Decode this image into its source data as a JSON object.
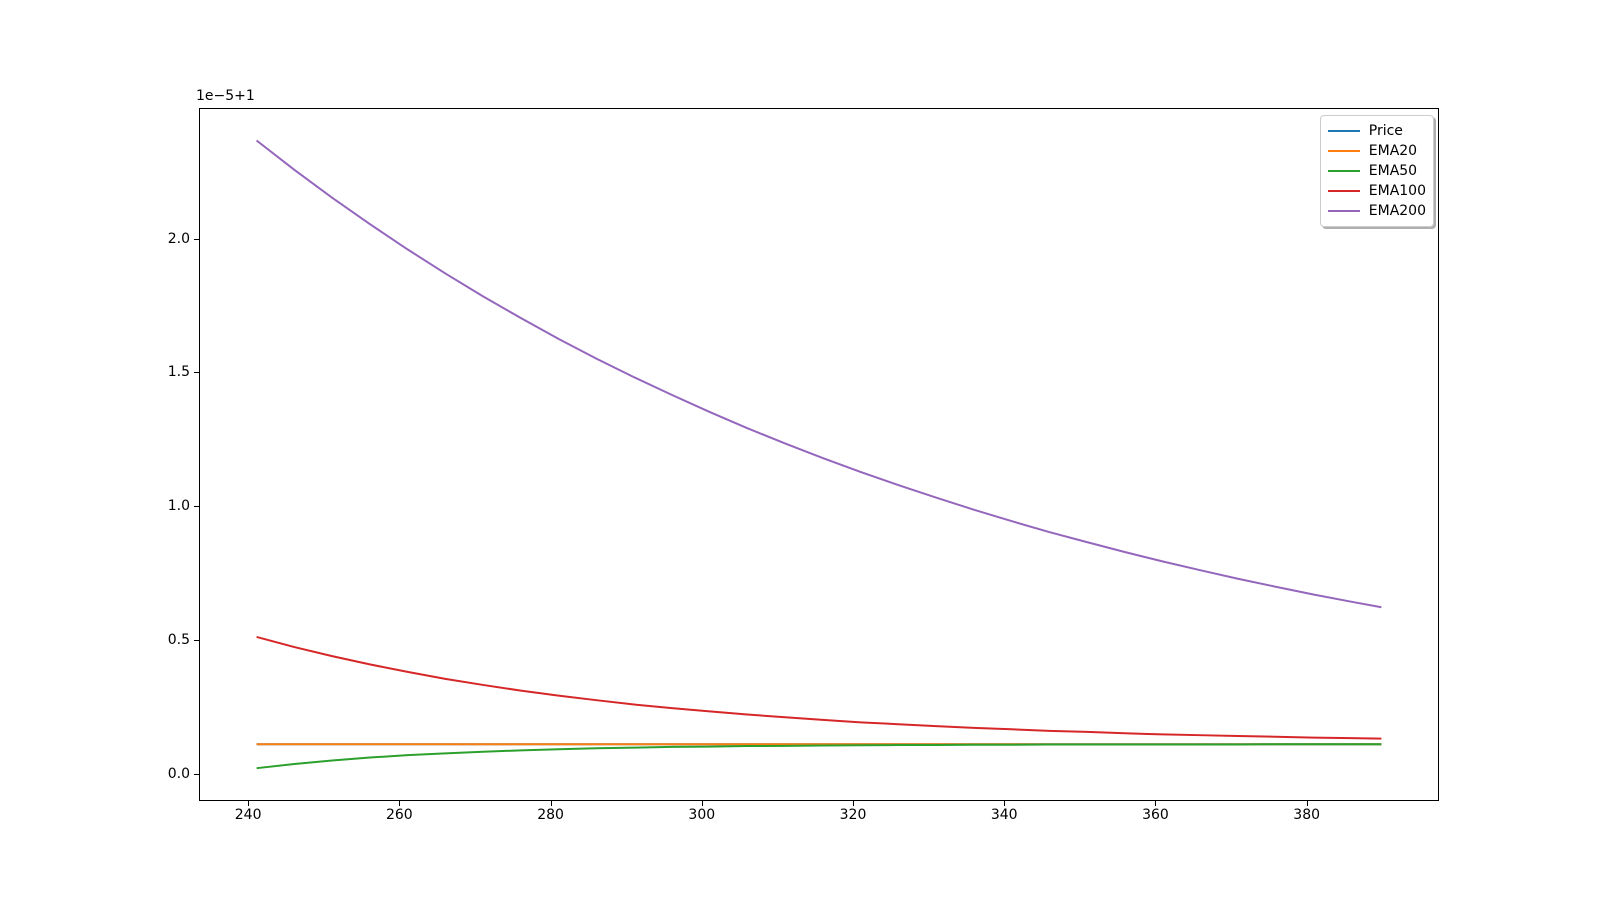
{
  "chart_data": {
    "type": "line",
    "y_offset_text": "1e−5+1",
    "grid": false,
    "legend_location": "upper right",
    "xlim": [
      233.5,
      397.5
    ],
    "ylim": [
      -0.101,
      2.488
    ],
    "xticks": [
      240,
      260,
      280,
      300,
      320,
      340,
      360,
      380
    ],
    "xtick_labels": [
      "240",
      "260",
      "280",
      "300",
      "320",
      "340",
      "360",
      "380"
    ],
    "yticks": [
      0.0,
      0.5,
      1.0,
      1.5,
      2.0
    ],
    "ytick_labels": [
      "0.0",
      "0.5",
      "1.0",
      "1.5",
      "2.0"
    ],
    "x": [
      241,
      246,
      251,
      256,
      261,
      266,
      271,
      276,
      281,
      286,
      291,
      296,
      301,
      306,
      311,
      316,
      321,
      326,
      331,
      336,
      341,
      346,
      351,
      356,
      361,
      366,
      371,
      376,
      381,
      386,
      390
    ],
    "series": [
      {
        "name": "Price",
        "color": "#1f77b4",
        "values": [
          0.108,
          0.108,
          0.108,
          0.108,
          0.108,
          0.108,
          0.108,
          0.108,
          0.108,
          0.108,
          0.108,
          0.108,
          0.108,
          0.108,
          0.108,
          0.108,
          0.108,
          0.108,
          0.108,
          0.108,
          0.108,
          0.108,
          0.108,
          0.108,
          0.108,
          0.108,
          0.108,
          0.108,
          0.108,
          0.108,
          0.108
        ]
      },
      {
        "name": "EMA20",
        "color": "#ff7f0e",
        "values": [
          0.108,
          0.108,
          0.108,
          0.108,
          0.108,
          0.108,
          0.108,
          0.108,
          0.108,
          0.108,
          0.108,
          0.108,
          0.108,
          0.108,
          0.108,
          0.108,
          0.108,
          0.108,
          0.108,
          0.108,
          0.108,
          0.108,
          0.108,
          0.108,
          0.108,
          0.108,
          0.108,
          0.108,
          0.108,
          0.108,
          0.108
        ]
      },
      {
        "name": "EMA50",
        "color": "#2ca02c",
        "values": [
          0.018,
          0.034,
          0.047,
          0.058,
          0.067,
          0.074,
          0.08,
          0.085,
          0.089,
          0.093,
          0.095,
          0.098,
          0.099,
          0.101,
          0.102,
          0.103,
          0.104,
          0.105,
          0.105,
          0.106,
          0.106,
          0.107,
          0.107,
          0.107,
          0.107,
          0.107,
          0.107,
          0.108,
          0.108,
          0.108,
          0.108
        ]
      },
      {
        "name": "EMA100",
        "color": "#d62728",
        "values": [
          0.51,
          0.472,
          0.438,
          0.407,
          0.379,
          0.353,
          0.33,
          0.309,
          0.29,
          0.273,
          0.257,
          0.243,
          0.231,
          0.219,
          0.209,
          0.199,
          0.19,
          0.183,
          0.176,
          0.169,
          0.164,
          0.158,
          0.154,
          0.149,
          0.145,
          0.142,
          0.139,
          0.136,
          0.133,
          0.131,
          0.129
        ]
      },
      {
        "name": "EMA200",
        "color": "#9467bd",
        "values": [
          2.37,
          2.26,
          2.156,
          2.057,
          1.962,
          1.872,
          1.786,
          1.705,
          1.627,
          1.553,
          1.483,
          1.417,
          1.353,
          1.292,
          1.235,
          1.18,
          1.128,
          1.079,
          1.032,
          0.987,
          0.944,
          0.903,
          0.865,
          0.828,
          0.793,
          0.76,
          0.728,
          0.698,
          0.669,
          0.642,
          0.621
        ]
      }
    ]
  }
}
